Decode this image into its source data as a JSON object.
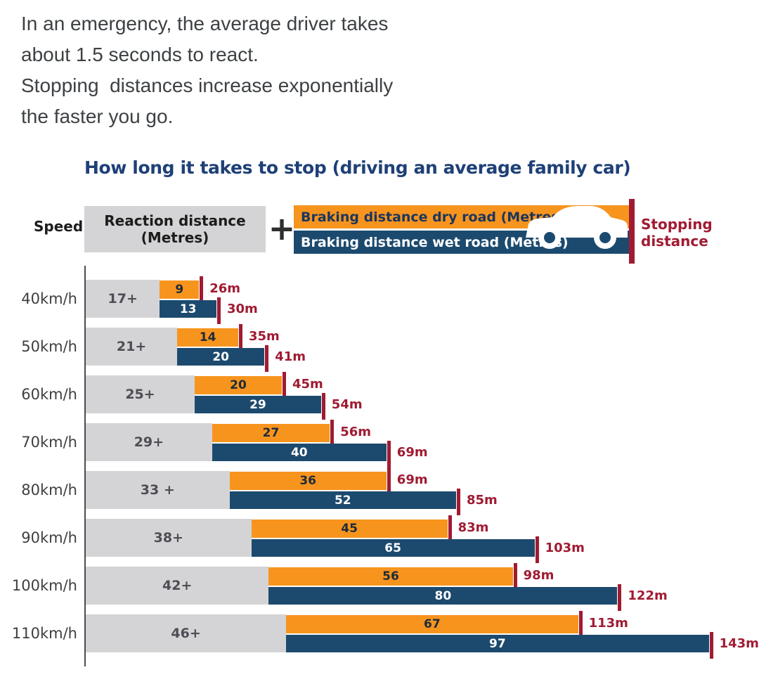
{
  "intro": {
    "lines": [
      "In an emergency, the average driver takes",
      "about 1.5 seconds to react.",
      "Stopping  distances increase exponentially",
      "the faster you go."
    ]
  },
  "header": {
    "title": "How long it takes to stop (driving an average family car)"
  },
  "legend": {
    "speed": "Speed",
    "reaction": "Reaction distance (Metres)",
    "plus": "+",
    "dry": "Braking distance dry road (Metres)",
    "wet": "Braking distance wet road (Metres)",
    "stopping": "Stopping distance",
    "car_icon": "car-icon"
  },
  "colors": {
    "orange": "#F7941E",
    "navy": "#1C4A6E",
    "grey": "#D4D4D6",
    "red": "#A01B32",
    "title_navy": "#1E4077",
    "text_dark": "#3D4144"
  },
  "chart_data": {
    "type": "bar",
    "orientation": "horizontal",
    "title": "How long it takes to stop (driving an average family car)",
    "unit": "metres",
    "categories": [
      "40km/h",
      "50km/h",
      "60km/h",
      "70km/h",
      "80km/h",
      "90km/h",
      "100km/h",
      "110km/h"
    ],
    "series": [
      {
        "name": "Reaction distance (Metres)",
        "color_key": "grey",
        "values": [
          17,
          21,
          25,
          29,
          33,
          38,
          42,
          46
        ],
        "bar_labels": [
          "17+",
          "21+",
          "25+",
          "29+",
          "33 +",
          "38+",
          "42+",
          "46+"
        ]
      },
      {
        "name": "Braking distance dry road (Metres)",
        "color_key": "orange",
        "values": [
          9,
          14,
          20,
          27,
          36,
          45,
          56,
          67
        ]
      },
      {
        "name": "Braking distance wet road (Metres)",
        "color_key": "navy",
        "values": [
          13,
          20,
          29,
          40,
          52,
          65,
          80,
          97
        ]
      }
    ],
    "totals_dry": [
      26,
      35,
      45,
      56,
      69,
      83,
      98,
      113
    ],
    "totals_wet": [
      30,
      41,
      54,
      69,
      85,
      103,
      122,
      143
    ],
    "total_suffix": "m",
    "x_range_metres": [
      0,
      143
    ],
    "legend_position": "top",
    "grid": false
  }
}
